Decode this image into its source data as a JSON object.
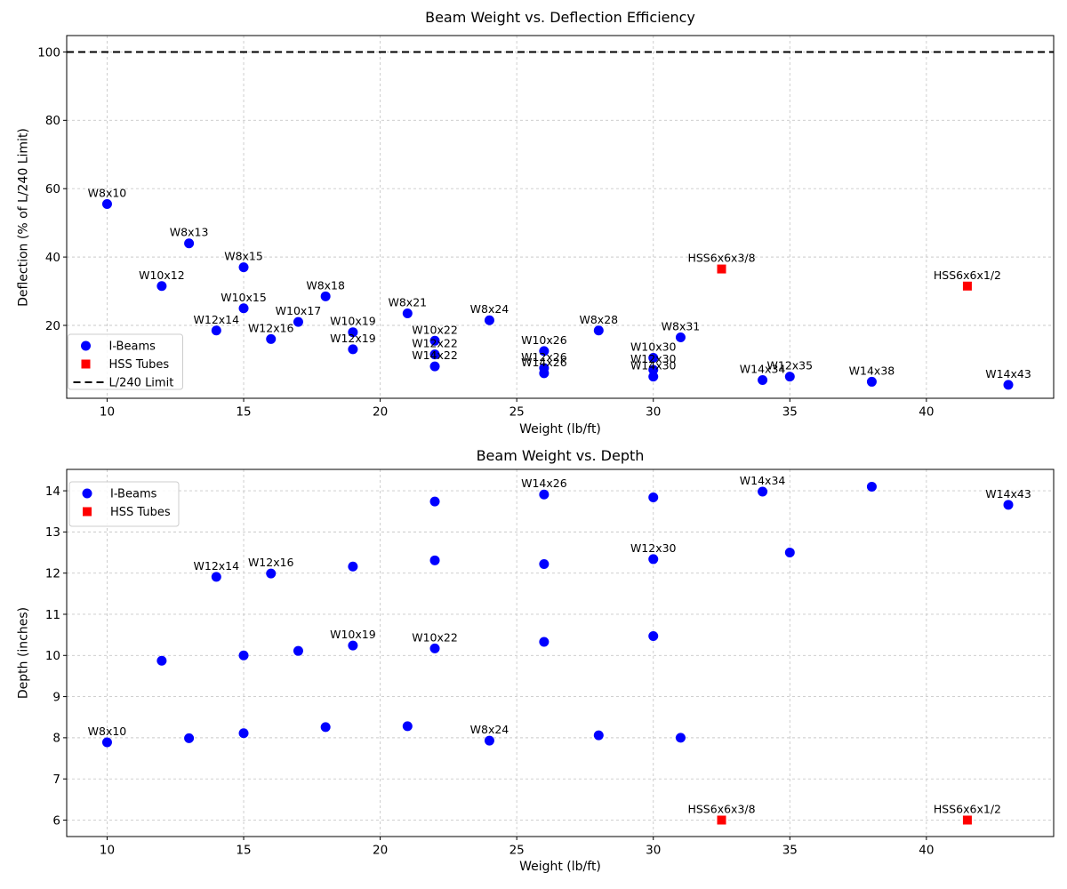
{
  "chart_data": [
    {
      "type": "scatter",
      "title": "Beam Weight vs. Deflection Efficiency",
      "xlabel": "Weight (lb/ft)",
      "ylabel": "Deflection (% of L/240 Limit)",
      "xlim": [
        8.52,
        44.66
      ],
      "ylim": [
        -1.33,
        104.8
      ],
      "xticks": [
        10,
        15,
        20,
        25,
        30,
        35,
        40
      ],
      "yticks": [
        20,
        40,
        60,
        80,
        100
      ],
      "grid": true,
      "annotate_all": true,
      "legend": {
        "position": "lower-left",
        "entries": [
          "I-Beams",
          "HSS Tubes",
          "L/240 Limit"
        ]
      },
      "reference_line": {
        "y": 100,
        "label": "L/240 Limit",
        "color": "#000000",
        "style": "dashed"
      },
      "series": [
        {
          "name": "I-Beams",
          "marker": "circle",
          "color": "#0000ff",
          "points": [
            {
              "label": "W8x10",
              "x": 10,
              "y": 55.5
            },
            {
              "label": "W10x12",
              "x": 12,
              "y": 31.5
            },
            {
              "label": "W8x13",
              "x": 13,
              "y": 44
            },
            {
              "label": "W12x14",
              "x": 14,
              "y": 18.5
            },
            {
              "label": "W8x15",
              "x": 15,
              "y": 37
            },
            {
              "label": "W10x15",
              "x": 15,
              "y": 25
            },
            {
              "label": "W12x16",
              "x": 16,
              "y": 16
            },
            {
              "label": "W10x17",
              "x": 17,
              "y": 21
            },
            {
              "label": "W8x18",
              "x": 18,
              "y": 28.5
            },
            {
              "label": "W10x19",
              "x": 19,
              "y": 18
            },
            {
              "label": "W12x19",
              "x": 19,
              "y": 13
            },
            {
              "label": "W8x21",
              "x": 21,
              "y": 23.5
            },
            {
              "label": "W10x22",
              "x": 22,
              "y": 15.5
            },
            {
              "label": "W12x22",
              "x": 22,
              "y": 11.5
            },
            {
              "label": "W14x22",
              "x": 22,
              "y": 8
            },
            {
              "label": "W8x24",
              "x": 24,
              "y": 21.5
            },
            {
              "label": "W10x26",
              "x": 26,
              "y": 12.5
            },
            {
              "label": "W12x26",
              "x": 26,
              "y": 7.5
            },
            {
              "label": "W14x26",
              "x": 26,
              "y": 6
            },
            {
              "label": "W8x28",
              "x": 28,
              "y": 18.5
            },
            {
              "label": "W10x30",
              "x": 30,
              "y": 10.5
            },
            {
              "label": "W12x30",
              "x": 30,
              "y": 7
            },
            {
              "label": "W14x30",
              "x": 30,
              "y": 5
            },
            {
              "label": "W8x31",
              "x": 31,
              "y": 16.5
            },
            {
              "label": "W14x34",
              "x": 34,
              "y": 4
            },
            {
              "label": "W12x35",
              "x": 35,
              "y": 5
            },
            {
              "label": "W14x38",
              "x": 38,
              "y": 3.5
            },
            {
              "label": "W14x43",
              "x": 43,
              "y": 2.6
            }
          ]
        },
        {
          "name": "HSS Tubes",
          "marker": "square",
          "color": "#ff0000",
          "points": [
            {
              "label": "HSS6x6x3/8",
              "x": 32.5,
              "y": 36.5
            },
            {
              "label": "HSS6x6x1/2",
              "x": 41.5,
              "y": 31.5
            }
          ]
        }
      ]
    },
    {
      "type": "scatter",
      "title": "Beam Weight vs. Depth",
      "xlabel": "Weight (lb/ft)",
      "ylabel": "Depth (inches)",
      "xlim": [
        8.52,
        44.66
      ],
      "ylim": [
        5.6,
        14.52
      ],
      "xticks": [
        10,
        15,
        20,
        25,
        30,
        35,
        40
      ],
      "yticks": [
        6,
        7,
        8,
        9,
        10,
        11,
        12,
        13,
        14
      ],
      "grid": true,
      "annotate_all": false,
      "legend": {
        "position": "upper-left",
        "entries": [
          "I-Beams",
          "HSS Tubes"
        ]
      },
      "series": [
        {
          "name": "I-Beams",
          "marker": "circle",
          "color": "#0000ff",
          "points": [
            {
              "label": "W8x10",
              "x": 10,
              "y": 7.89,
              "ann": true
            },
            {
              "label": "W10x12",
              "x": 12,
              "y": 9.87
            },
            {
              "label": "W8x13",
              "x": 13,
              "y": 7.99
            },
            {
              "label": "W12x14",
              "x": 14,
              "y": 11.91,
              "ann": true
            },
            {
              "label": "W8x15",
              "x": 15,
              "y": 8.11
            },
            {
              "label": "W10x15",
              "x": 15,
              "y": 10.0
            },
            {
              "label": "W12x16",
              "x": 16,
              "y": 11.99,
              "ann": true
            },
            {
              "label": "W10x17",
              "x": 17,
              "y": 10.11
            },
            {
              "label": "W8x18",
              "x": 18,
              "y": 8.26
            },
            {
              "label": "W10x19",
              "x": 19,
              "y": 10.24,
              "ann": true
            },
            {
              "label": "W12x19",
              "x": 19,
              "y": 12.16
            },
            {
              "label": "W8x21",
              "x": 21,
              "y": 8.28
            },
            {
              "label": "W10x22",
              "x": 22,
              "y": 10.17,
              "ann": true
            },
            {
              "label": "W12x22",
              "x": 22,
              "y": 12.31
            },
            {
              "label": "W14x22",
              "x": 22,
              "y": 13.74
            },
            {
              "label": "W8x24",
              "x": 24,
              "y": 7.93,
              "ann": true
            },
            {
              "label": "W10x26",
              "x": 26,
              "y": 10.33
            },
            {
              "label": "W12x26",
              "x": 26,
              "y": 12.22
            },
            {
              "label": "W14x26",
              "x": 26,
              "y": 13.91,
              "ann": true
            },
            {
              "label": "W8x28",
              "x": 28,
              "y": 8.06
            },
            {
              "label": "W10x30",
              "x": 30,
              "y": 10.47
            },
            {
              "label": "W12x30",
              "x": 30,
              "y": 12.34,
              "ann": true
            },
            {
              "label": "W14x30",
              "x": 30,
              "y": 13.84
            },
            {
              "label": "W8x31",
              "x": 31,
              "y": 8.0
            },
            {
              "label": "W14x34",
              "x": 34,
              "y": 13.98,
              "ann": true
            },
            {
              "label": "W12x35",
              "x": 35,
              "y": 12.5
            },
            {
              "label": "W14x38",
              "x": 38,
              "y": 14.1
            },
            {
              "label": "W14x43",
              "x": 43,
              "y": 13.66,
              "ann": true
            }
          ]
        },
        {
          "name": "HSS Tubes",
          "marker": "square",
          "color": "#ff0000",
          "points": [
            {
              "label": "HSS6x6x3/8",
              "x": 32.5,
              "y": 6.0,
              "ann": true
            },
            {
              "label": "HSS6x6x1/2",
              "x": 41.5,
              "y": 6.0,
              "ann": true
            }
          ]
        }
      ]
    }
  ],
  "style": {
    "grid_color": "#c9c9c9",
    "spine_color": "#000000",
    "text_color": "#000000",
    "legend_border_color": "#cccccc",
    "legend_background": "rgba(255,255,255,0.85)"
  }
}
